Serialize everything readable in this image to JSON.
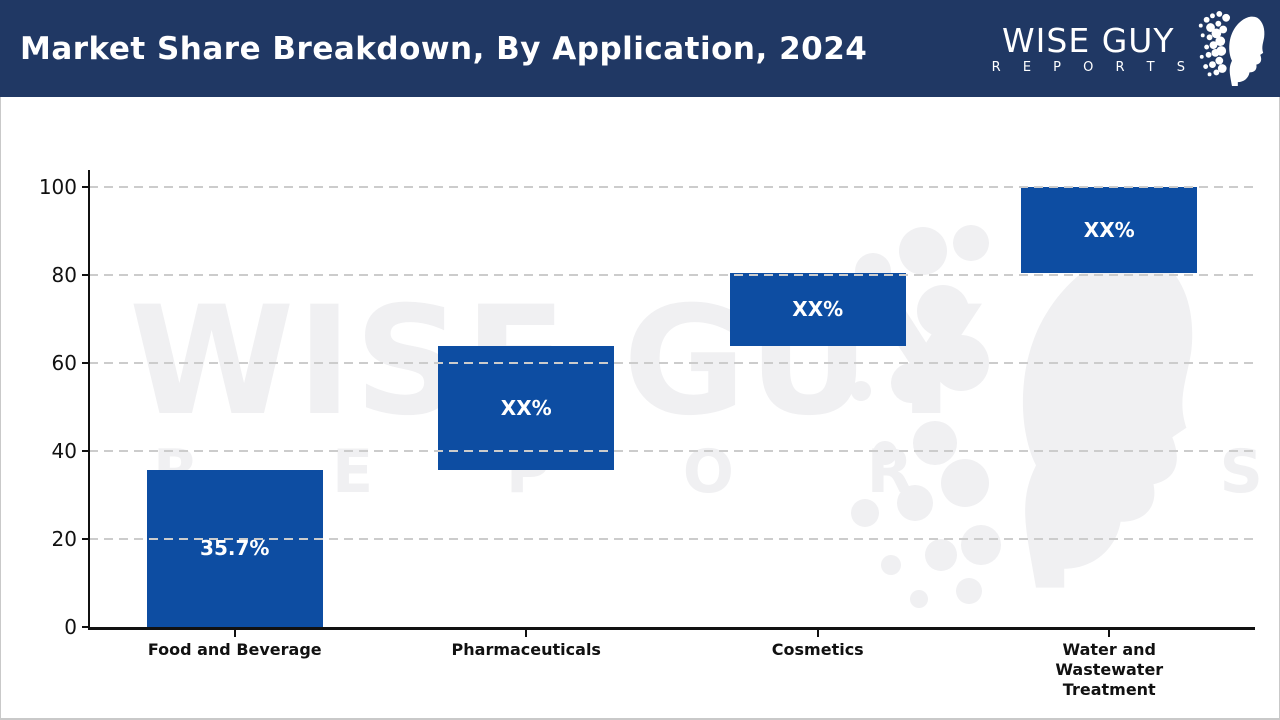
{
  "header": {
    "title": "Market Share Breakdown, By Application, 2024",
    "brand": {
      "name_top": "WISE GUY",
      "name_bottom": "R E P O R T S"
    }
  },
  "watermark": {
    "line1": "WISE GUY",
    "line2": "R E P O R T S"
  },
  "colors": {
    "header_bg": "#203864",
    "bar": "#0d4da2",
    "grid": "#cccccc",
    "axis": "#111111",
    "bar_label": "#ffffff",
    "watermark": "#f0f0f2",
    "canvas_border": "#c9c9c9"
  },
  "chart_data": {
    "type": "bar",
    "subtype": "waterfall-stacked-breakdown",
    "title": "Market Share Breakdown, By Application, 2024",
    "categories": [
      "Food and Beverage",
      "Pharmaceuticals",
      "Cosmetics",
      "Water and Wastewater Treatment"
    ],
    "category_display_lines": [
      [
        "Food and Beverage"
      ],
      [
        "Pharmaceuticals"
      ],
      [
        "Cosmetics"
      ],
      [
        "Water and",
        "Wastewater",
        "Treatment"
      ]
    ],
    "segments": [
      {
        "category": "Food and Beverage",
        "start": 0,
        "end": 35.7,
        "value": 35.7,
        "label": "35.7%"
      },
      {
        "category": "Pharmaceuticals",
        "start": 35.7,
        "end": 63.9,
        "value": 28.2,
        "label": "XX%"
      },
      {
        "category": "Cosmetics",
        "start": 63.9,
        "end": 80.5,
        "value": 16.6,
        "label": "XX%"
      },
      {
        "category": "Water and Wastewater Treatment",
        "start": 80.5,
        "end": 100,
        "value": 19.5,
        "label": "XX%"
      }
    ],
    "ylim": [
      0,
      100
    ],
    "yticks": [
      0,
      20,
      40,
      60,
      80,
      100
    ],
    "xlabel": "",
    "ylabel": "",
    "grid": "horizontal-dashed",
    "legend": null
  }
}
